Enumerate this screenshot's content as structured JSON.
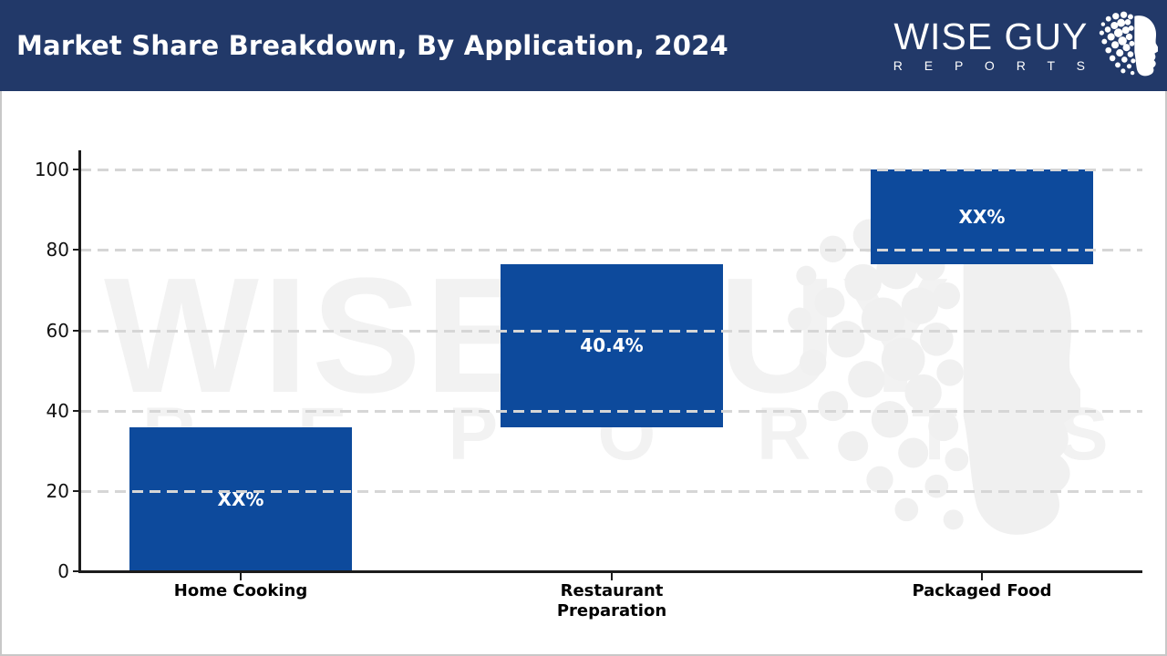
{
  "header": {
    "title": "Market Share Breakdown, By Application, 2024",
    "logo": {
      "wordmark": "WISE GUY",
      "subtext": "R E P O R T S",
      "head_icon": "dotted-face-profile"
    }
  },
  "watermark": {
    "wordmark": "WISE GUY",
    "subtext": "R E P O R T S",
    "head_icon": "dotted-face-profile"
  },
  "colors": {
    "header_bg": "#223969",
    "bar_fill": "#0d4a9c",
    "bar_label": "#ffffff",
    "axis": "#1c1c1c",
    "grid": "#d6d6d6",
    "watermark": "#f2f2f2",
    "page_bg": "#ffffff"
  },
  "chart_data": {
    "type": "bar",
    "variant": "floating-waterfall",
    "title": "Market Share Breakdown, By Application, 2024",
    "xlabel": "",
    "ylabel": "",
    "ylim": [
      0,
      100
    ],
    "yticks": [
      0,
      20,
      40,
      60,
      80,
      100
    ],
    "grid": {
      "horizontal": true,
      "style": "dashed",
      "drawn_over_bars": true
    },
    "legend": "none",
    "categories": [
      {
        "lines": [
          "Home Cooking"
        ]
      },
      {
        "lines": [
          "Restaurant",
          "Preparation"
        ]
      },
      {
        "lines": [
          "Packaged Food"
        ]
      }
    ],
    "series": [
      {
        "name": "Market Share",
        "segments": [
          {
            "category": "Home Cooking",
            "start": 0,
            "end": 36,
            "label": "XX%"
          },
          {
            "category": "Restaurant Preparation",
            "start": 36,
            "end": 76.4,
            "label": "40.4%"
          },
          {
            "category": "Packaged Food",
            "start": 76.4,
            "end": 100,
            "label": "XX%"
          }
        ]
      }
    ]
  }
}
